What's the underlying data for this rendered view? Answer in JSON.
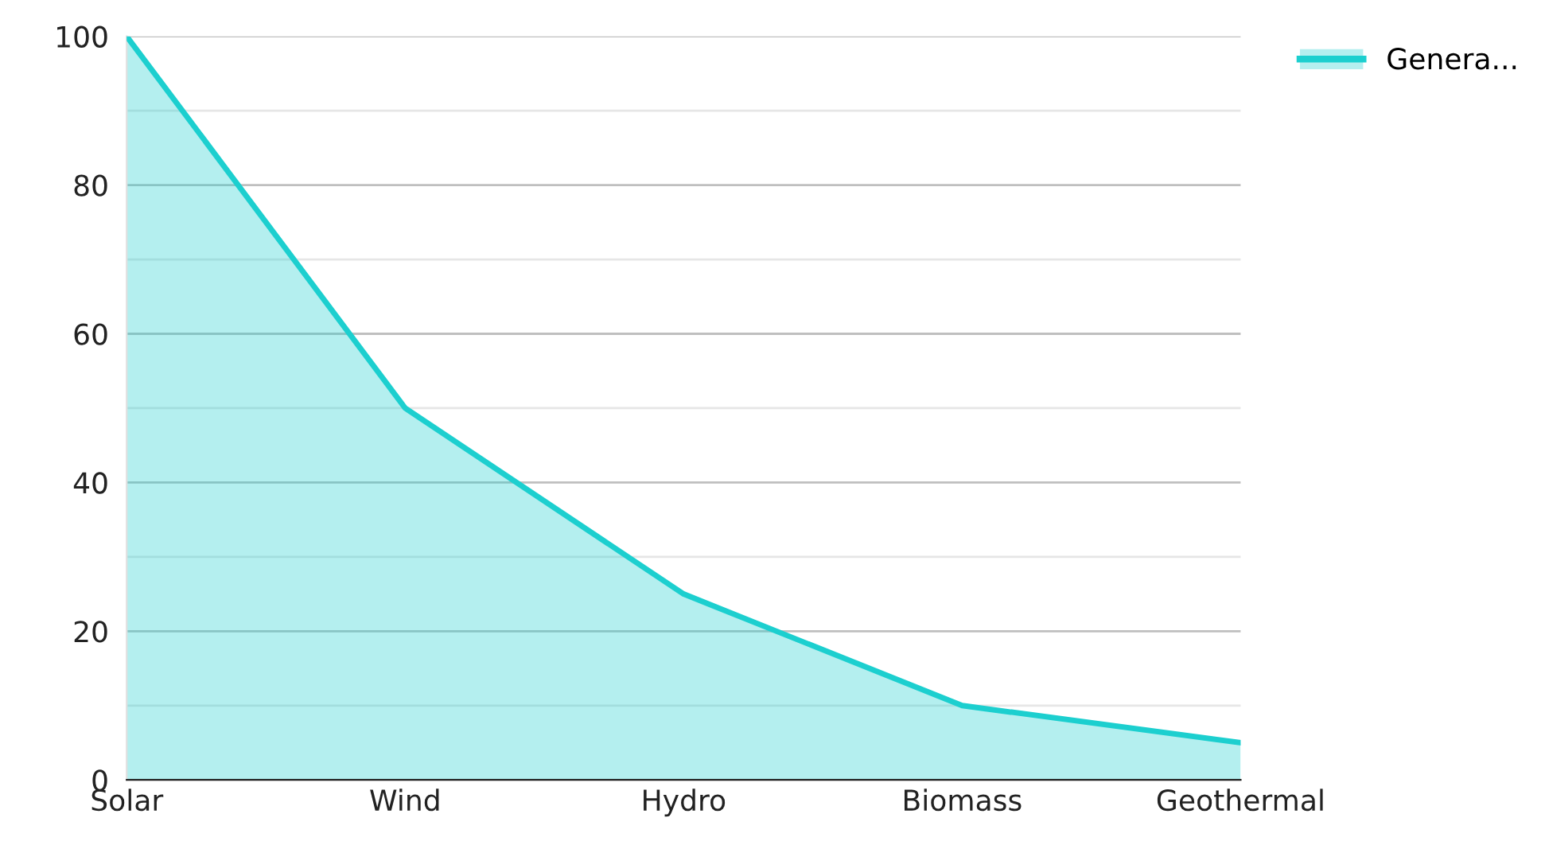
{
  "chart_data": {
    "type": "area",
    "categories": [
      "Solar",
      "Wind",
      "Hydro",
      "Biomass",
      "Geothermal"
    ],
    "series": [
      {
        "name": "Genera...",
        "color": "#1ccfcf",
        "values": [
          100,
          50,
          25,
          10,
          5
        ]
      }
    ],
    "ylim": [
      0,
      100
    ],
    "yticks": [
      0,
      {
        "value": 10,
        "label": null
      },
      20,
      {
        "value": 30,
        "label": null
      },
      40,
      {
        "value": 50,
        "label": null
      },
      60,
      {
        "value": 70,
        "label": null
      },
      80,
      {
        "value": 90,
        "label": null
      },
      100
    ],
    "grid": "y",
    "legend": "top right"
  }
}
